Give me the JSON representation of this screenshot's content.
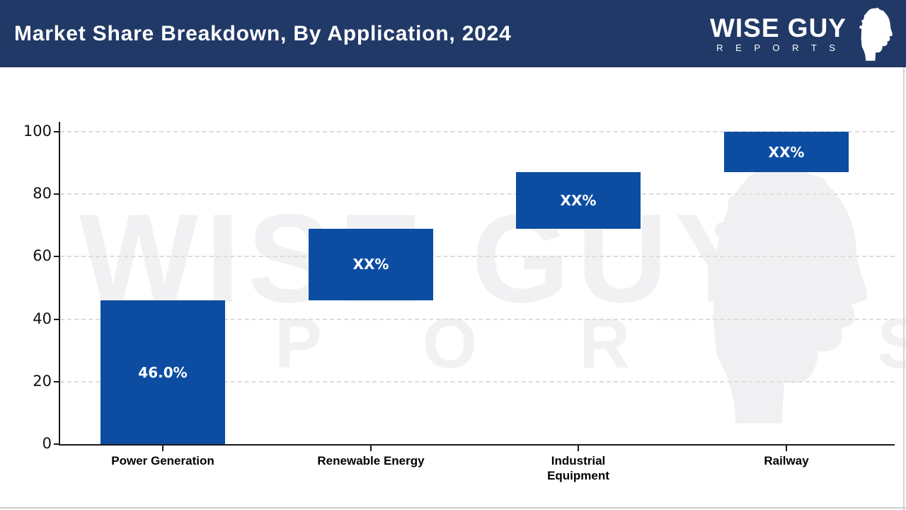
{
  "header": {
    "title": "Market Share Breakdown, By Application, 2024",
    "logo": {
      "line1": "WISE GUY",
      "line2": "R E P O R T S"
    }
  },
  "watermark": {
    "line1": "WISE GUY",
    "line2": "P O R T S"
  },
  "colors": {
    "header_bg": "#213966",
    "title_text": "#ffffff",
    "bar_fill": "#0c4da2",
    "bar_label_text": "#ffffff",
    "axis": "#1a1a1a",
    "gridline": "#dcdcdc",
    "tick_label": "#111111",
    "watermark": "#f1f1f3"
  },
  "chart_data": {
    "type": "bar",
    "subtype": "waterfall",
    "title": "Market Share Breakdown, By Application, 2024",
    "categories": [
      "Power Generation",
      "Renewable Energy",
      "Industrial Equipment",
      "Railway"
    ],
    "segments": [
      {
        "category": "Power Generation",
        "start": 0,
        "end": 46,
        "value": 46,
        "label": "46.0%"
      },
      {
        "category": "Renewable Energy",
        "start": 46,
        "end": 69,
        "value": 23,
        "label": "XX%"
      },
      {
        "category": "Industrial Equipment",
        "start": 69,
        "end": 87,
        "value": 18,
        "label": "XX%"
      },
      {
        "category": "Railway",
        "start": 87,
        "end": 100,
        "value": 13,
        "label": "XX%"
      }
    ],
    "ylim": [
      0,
      100
    ],
    "yticks": [
      0,
      20,
      40,
      60,
      80,
      100
    ],
    "xlabel": "",
    "ylabel": "",
    "grid": "horizontal-dashed",
    "legend": "none",
    "bar_color": "#0c4da2"
  }
}
